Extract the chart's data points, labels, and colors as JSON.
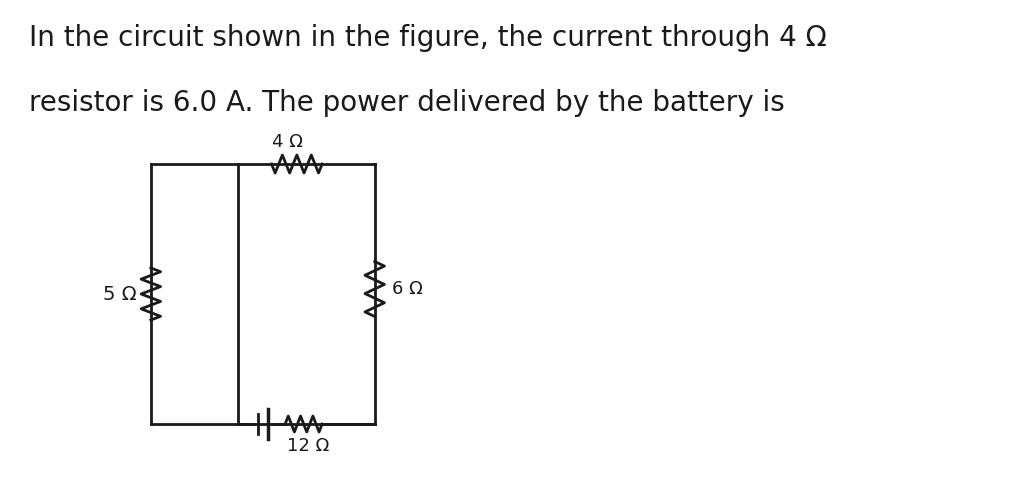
{
  "background_color": "#ffffff",
  "text_line1": "In the circuit shown in the figure, the current through 4 Ω",
  "text_line2": "resistor is 6.0 A. The power delivered by the battery is",
  "text_fontsize": 20,
  "text_color": "#1a1a1a",
  "circuit_color": "#1a1a1a",
  "label_4ohm": "4 Ω",
  "label_5ohm": "5 Ω",
  "label_6ohm": "6 Ω",
  "label_12ohm": "12 Ω",
  "OL": 1.55,
  "OM": 2.45,
  "OR": 3.85,
  "OT": 3.15,
  "OB": 0.55,
  "lw": 2.0
}
